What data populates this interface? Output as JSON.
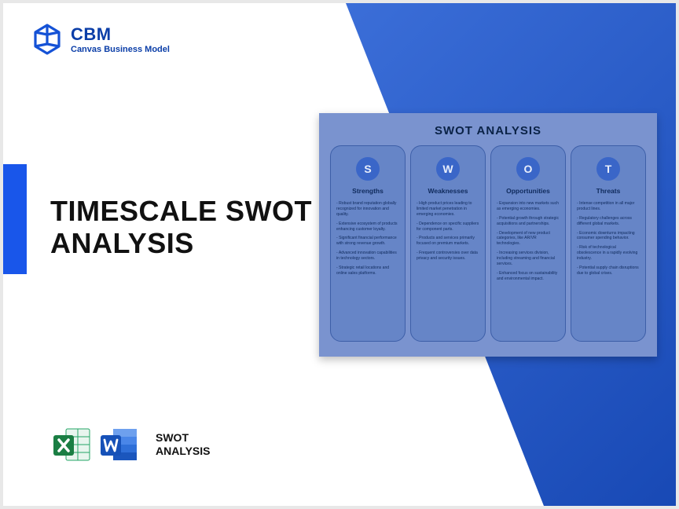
{
  "header": {
    "brand": "CBM",
    "subtitle": "Canvas Business Model"
  },
  "title_line1": "TIMESCALE SWOT",
  "title_line2": "ANALYSIS",
  "footer": {
    "line1": "SWOT",
    "line2": "ANALYSIS"
  },
  "swot": {
    "title": "SWOT ANALYSIS",
    "columns": [
      {
        "letter": "S",
        "heading": "Strengths",
        "items": [
          "Robust brand reputation globally recognized for innovation and quality.",
          "Extensive ecosystem of products enhancing customer loyalty.",
          "Significant financial performance with strong revenue growth.",
          "Advanced innovation capabilities in technology sectors.",
          "Strategic retail locations and online sales platforms."
        ]
      },
      {
        "letter": "W",
        "heading": "Weaknesses",
        "items": [
          "High product prices leading to limited market penetration in emerging economies.",
          "Dependence on specific suppliers for component parts.",
          "Products and services primarily focused on premium markets.",
          "Frequent controversies over data privacy and security issues."
        ]
      },
      {
        "letter": "O",
        "heading": "Opportunities",
        "items": [
          "Expansion into new markets such as emerging economies.",
          "Potential growth through strategic acquisitions and partnerships.",
          "Development of new product categories, like AR/VR technologies.",
          "Increasing services division, including streaming and financial services.",
          "Enhanced focus on sustainability and environmental impact."
        ]
      },
      {
        "letter": "T",
        "heading": "Threats",
        "items": [
          "Intense competition in all major product lines.",
          "Regulatory challenges across different global markets.",
          "Economic downturns impacting consumer spending behavior.",
          "Risk of technological obsolescence in a rapidly evolving industry.",
          "Potential supply chain disruptions due to global crises."
        ]
      }
    ]
  },
  "colors": {
    "brand_blue": "#0b3ea8",
    "accent_blue": "#1956ea",
    "panel_bg": "#7a93cf",
    "col_bg": "#6685c7",
    "circle_bg": "#3a66c8"
  }
}
